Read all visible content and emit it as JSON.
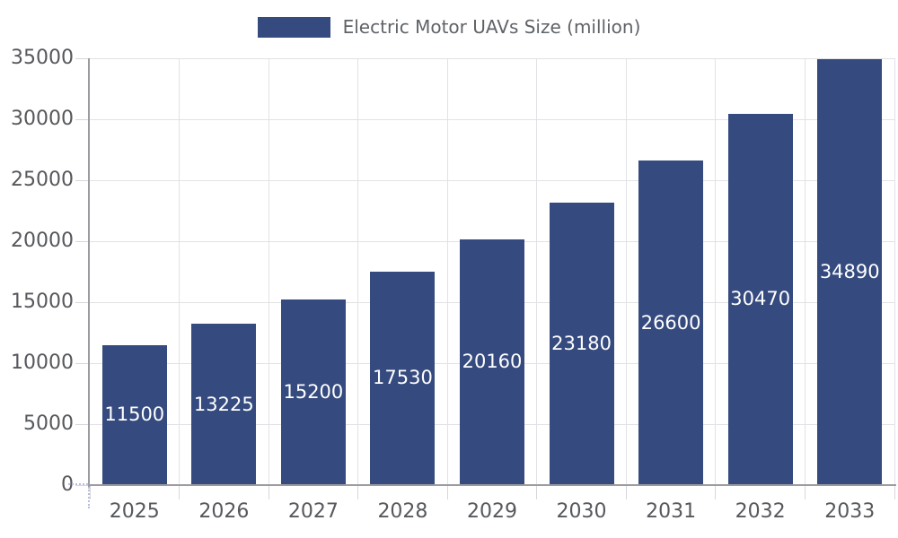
{
  "legend": {
    "label": "Electric Motor UAVs Size (million)"
  },
  "colors": {
    "bar": "#354A7E",
    "axis": "#9C9CA0",
    "grid": "#E2E2E6",
    "tick": "#D7D7DB",
    "axis_label_text": "#56585C",
    "legend_text": "#5F6368",
    "value_label_text": "#FFFFFF",
    "origin_dash": "#B7BDDE"
  },
  "chart_data": {
    "type": "bar",
    "title": "Electric Motor UAVs Size (million)",
    "categories": [
      "2025",
      "2026",
      "2027",
      "2028",
      "2029",
      "2030",
      "2031",
      "2032",
      "2033"
    ],
    "values": [
      11500,
      13225,
      15200,
      17530,
      20160,
      23180,
      26600,
      30470,
      34890
    ],
    "xlabel": "",
    "ylabel": "",
    "ylim": [
      0,
      35000
    ],
    "yticks": [
      0,
      5000,
      10000,
      15000,
      20000,
      25000,
      30000,
      35000
    ],
    "grid": true,
    "legend_position": "top",
    "value_labels": "inside-center-white"
  }
}
